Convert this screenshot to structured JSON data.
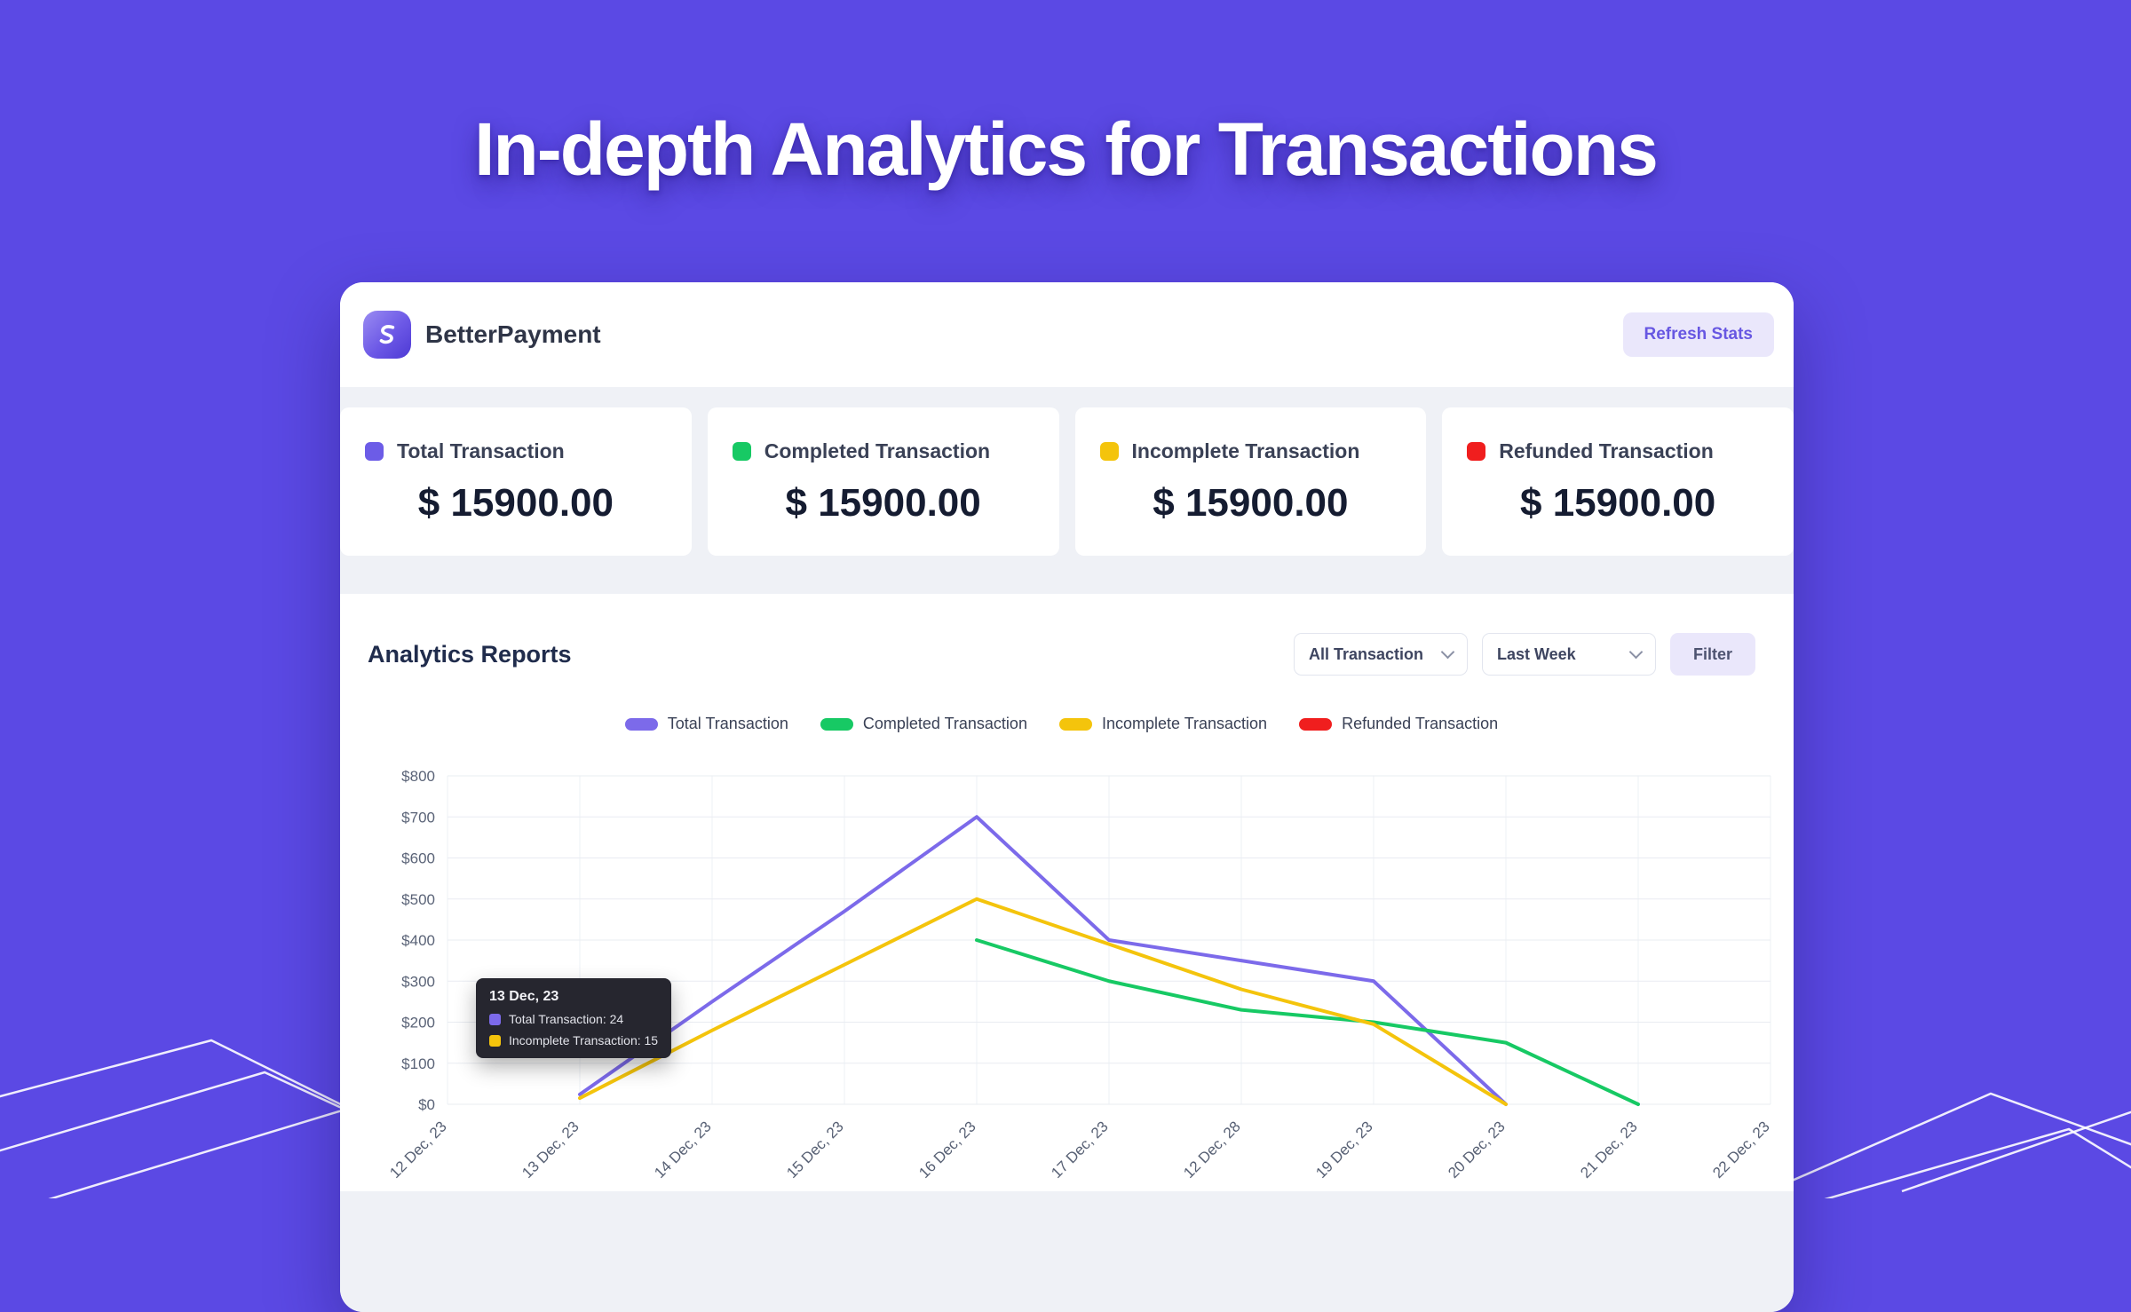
{
  "page": {
    "title": "In-depth Analytics for Transactions"
  },
  "header": {
    "brand": "BetterPayment",
    "refresh_button": "Refresh Stats"
  },
  "stats": {
    "cards": [
      {
        "label": "Total Transaction",
        "amount": "$ 15900.00",
        "color": "#6C5CE7"
      },
      {
        "label": "Completed Transaction",
        "amount": "$ 15900.00",
        "color": "#17C964"
      },
      {
        "label": "Incomplete Transaction",
        "amount": "$ 15900.00",
        "color": "#F4C40C"
      },
      {
        "label": "Refunded Transaction",
        "amount": "$ 15900.00",
        "color": "#F01E1E"
      }
    ]
  },
  "analytics": {
    "title": "Analytics Reports",
    "filters": {
      "transaction_select": "All Transaction",
      "period_select": "Last Week",
      "filter_button": "Filter"
    }
  },
  "tooltip": {
    "title": "13 Dec, 23",
    "rows": [
      {
        "label": "Total Transaction: 24",
        "color": "#7C6AEA"
      },
      {
        "label": "Incomplete Transaction: 15",
        "color": "#F4C40C"
      }
    ]
  },
  "chart_data": {
    "type": "line",
    "title": "Analytics Reports",
    "xlabel": "",
    "ylabel": "",
    "ylim": [
      0,
      800
    ],
    "ytick_step": 100,
    "ytick_prefix": "$",
    "grid": true,
    "legend_position": "top",
    "categories": [
      "12 Dec, 23",
      "13 Dec, 23",
      "14 Dec, 23",
      "15 Dec, 23",
      "16 Dec, 23",
      "17 Dec, 23",
      "12 Dec, 28",
      "19 Dec, 23",
      "20 Dec, 23",
      "21 Dec, 23",
      "22 Dec, 23"
    ],
    "series": [
      {
        "name": "Total Transaction",
        "color": "#7C6AEA",
        "values": [
          null,
          24,
          250,
          470,
          700,
          400,
          350,
          300,
          0,
          null,
          null
        ]
      },
      {
        "name": "Completed Transaction",
        "color": "#17C964",
        "values": [
          null,
          null,
          null,
          null,
          400,
          300,
          230,
          200,
          150,
          0,
          null
        ]
      },
      {
        "name": "Incomplete Transaction",
        "color": "#F4C40C",
        "values": [
          null,
          15,
          180,
          340,
          500,
          390,
          280,
          195,
          0,
          null,
          null
        ]
      },
      {
        "name": "Refunded Transaction",
        "color": "#F01E1E",
        "values": [
          null,
          null,
          null,
          null,
          null,
          null,
          null,
          null,
          null,
          null,
          null
        ]
      }
    ]
  }
}
